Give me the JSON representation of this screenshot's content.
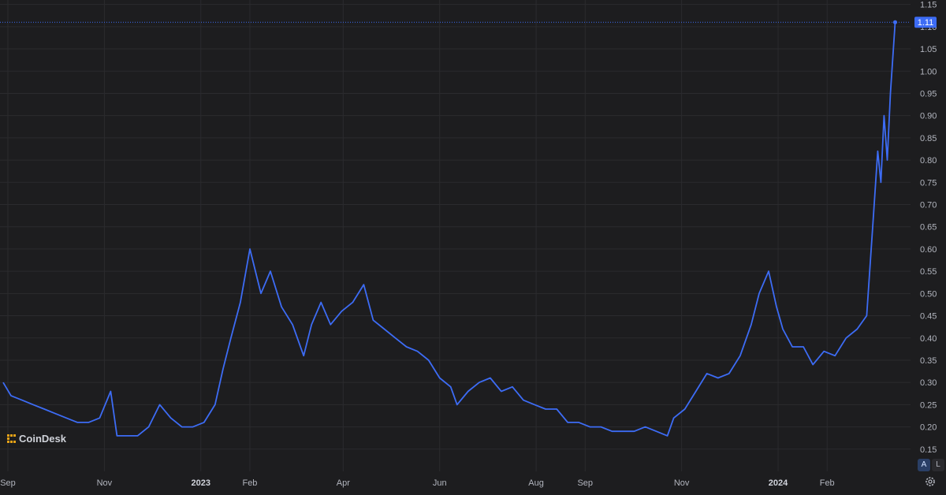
{
  "watermark": {
    "brand": "CoinDesk",
    "icon": "coindesk-logo-icon"
  },
  "controls": {
    "auto_label": "A",
    "log_label": "L",
    "settings_icon": "gear-icon"
  },
  "colors": {
    "background": "#1d1d1f",
    "line": "#3d6cf5",
    "price_tag": "#3d6cf5",
    "grid": "#2b2b2e",
    "text": "#b2b5be",
    "brand": "#e8a317"
  },
  "chart_data": {
    "type": "line",
    "title": "",
    "xlabel": "",
    "ylabel": "",
    "ylim": [
      0.1,
      1.16
    ],
    "xlim": [
      "2022-08-29",
      "2024-03-18"
    ],
    "grid": true,
    "y_ticks": [
      0.15,
      0.2,
      0.25,
      0.3,
      0.35,
      0.4,
      0.45,
      0.5,
      0.55,
      0.6,
      0.65,
      0.7,
      0.75,
      0.8,
      0.85,
      0.9,
      0.95,
      1.0,
      1.05,
      1.1,
      1.15
    ],
    "y_tick_labels": [
      "0.15",
      "0.20",
      "0.25",
      "0.30",
      "0.35",
      "0.40",
      "0.45",
      "0.50",
      "0.55",
      "0.60",
      "0.65",
      "0.70",
      "0.75",
      "0.80",
      "0.85",
      "0.90",
      "0.95",
      "1.00",
      "1.05",
      "1.10",
      "1.15"
    ],
    "x_ticks": [
      {
        "date": "2022-09-01",
        "label": "Sep",
        "bold": false
      },
      {
        "date": "2022-11-01",
        "label": "Nov",
        "bold": false
      },
      {
        "date": "2023-01-01",
        "label": "2023",
        "bold": true
      },
      {
        "date": "2023-02-01",
        "label": "Feb",
        "bold": false
      },
      {
        "date": "2023-04-01",
        "label": "Apr",
        "bold": false
      },
      {
        "date": "2023-06-01",
        "label": "Jun",
        "bold": false
      },
      {
        "date": "2023-08-01",
        "label": "Aug",
        "bold": false
      },
      {
        "date": "2023-09-01",
        "label": "Sep",
        "bold": false
      },
      {
        "date": "2023-11-01",
        "label": "Nov",
        "bold": false
      },
      {
        "date": "2024-01-01",
        "label": "2024",
        "bold": true
      },
      {
        "date": "2024-02-01",
        "label": "Feb",
        "bold": false
      }
    ],
    "last_value": 1.11,
    "last_value_label": "1.11",
    "series": [
      {
        "values": [
          [
            "2022-08-29",
            0.3
          ],
          [
            "2022-09-03",
            0.27
          ],
          [
            "2022-09-10",
            0.26
          ],
          [
            "2022-09-17",
            0.25
          ],
          [
            "2022-09-24",
            0.24
          ],
          [
            "2022-10-01",
            0.23
          ],
          [
            "2022-10-08",
            0.22
          ],
          [
            "2022-10-15",
            0.21
          ],
          [
            "2022-10-22",
            0.21
          ],
          [
            "2022-10-29",
            0.22
          ],
          [
            "2022-11-05",
            0.28
          ],
          [
            "2022-11-09",
            0.18
          ],
          [
            "2022-11-15",
            0.18
          ],
          [
            "2022-11-22",
            0.18
          ],
          [
            "2022-11-29",
            0.2
          ],
          [
            "2022-12-06",
            0.25
          ],
          [
            "2022-12-13",
            0.22
          ],
          [
            "2022-12-20",
            0.2
          ],
          [
            "2022-12-27",
            0.2
          ],
          [
            "2023-01-03",
            0.21
          ],
          [
            "2023-01-10",
            0.25
          ],
          [
            "2023-01-15",
            0.33
          ],
          [
            "2023-01-20",
            0.4
          ],
          [
            "2023-01-26",
            0.48
          ],
          [
            "2023-02-01",
            0.6
          ],
          [
            "2023-02-08",
            0.5
          ],
          [
            "2023-02-14",
            0.55
          ],
          [
            "2023-02-21",
            0.47
          ],
          [
            "2023-02-28",
            0.43
          ],
          [
            "2023-03-07",
            0.36
          ],
          [
            "2023-03-12",
            0.43
          ],
          [
            "2023-03-18",
            0.48
          ],
          [
            "2023-03-24",
            0.43
          ],
          [
            "2023-03-31",
            0.46
          ],
          [
            "2023-04-07",
            0.48
          ],
          [
            "2023-04-14",
            0.52
          ],
          [
            "2023-04-20",
            0.44
          ],
          [
            "2023-04-27",
            0.42
          ],
          [
            "2023-05-04",
            0.4
          ],
          [
            "2023-05-11",
            0.38
          ],
          [
            "2023-05-18",
            0.37
          ],
          [
            "2023-05-25",
            0.35
          ],
          [
            "2023-06-01",
            0.31
          ],
          [
            "2023-06-08",
            0.29
          ],
          [
            "2023-06-12",
            0.25
          ],
          [
            "2023-06-19",
            0.28
          ],
          [
            "2023-06-26",
            0.3
          ],
          [
            "2023-07-03",
            0.31
          ],
          [
            "2023-07-10",
            0.28
          ],
          [
            "2023-07-17",
            0.29
          ],
          [
            "2023-07-24",
            0.26
          ],
          [
            "2023-07-31",
            0.25
          ],
          [
            "2023-08-07",
            0.24
          ],
          [
            "2023-08-14",
            0.24
          ],
          [
            "2023-08-21",
            0.21
          ],
          [
            "2023-08-28",
            0.21
          ],
          [
            "2023-09-04",
            0.2
          ],
          [
            "2023-09-11",
            0.2
          ],
          [
            "2023-09-18",
            0.19
          ],
          [
            "2023-09-25",
            0.19
          ],
          [
            "2023-10-02",
            0.19
          ],
          [
            "2023-10-09",
            0.2
          ],
          [
            "2023-10-16",
            0.19
          ],
          [
            "2023-10-23",
            0.18
          ],
          [
            "2023-10-27",
            0.22
          ],
          [
            "2023-11-03",
            0.24
          ],
          [
            "2023-11-10",
            0.28
          ],
          [
            "2023-11-17",
            0.32
          ],
          [
            "2023-11-24",
            0.31
          ],
          [
            "2023-12-01",
            0.32
          ],
          [
            "2023-12-08",
            0.36
          ],
          [
            "2023-12-15",
            0.43
          ],
          [
            "2023-12-20",
            0.5
          ],
          [
            "2023-12-26",
            0.55
          ],
          [
            "2023-12-31",
            0.47
          ],
          [
            "2024-01-04",
            0.42
          ],
          [
            "2024-01-10",
            0.38
          ],
          [
            "2024-01-17",
            0.38
          ],
          [
            "2024-01-23",
            0.34
          ],
          [
            "2024-01-30",
            0.37
          ],
          [
            "2024-02-06",
            0.36
          ],
          [
            "2024-02-13",
            0.4
          ],
          [
            "2024-02-20",
            0.42
          ],
          [
            "2024-02-26",
            0.45
          ],
          [
            "2024-03-01",
            0.66
          ],
          [
            "2024-03-04",
            0.82
          ],
          [
            "2024-03-06",
            0.75
          ],
          [
            "2024-03-08",
            0.9
          ],
          [
            "2024-03-10",
            0.8
          ],
          [
            "2024-03-12",
            0.95
          ],
          [
            "2024-03-15",
            1.11
          ]
        ]
      }
    ]
  }
}
